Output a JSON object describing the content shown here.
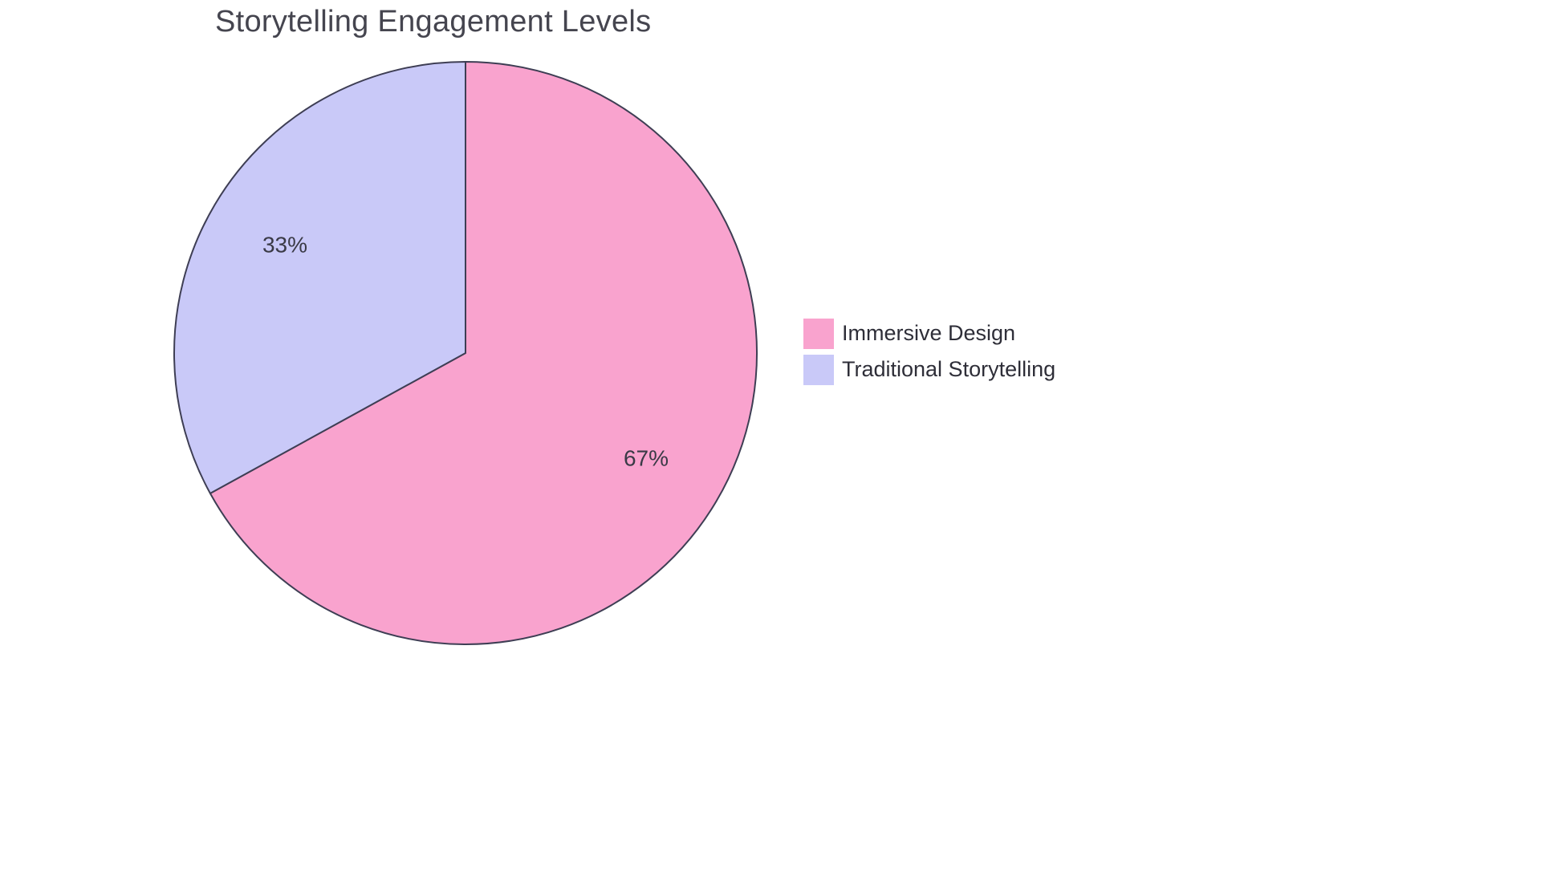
{
  "page": {
    "background_color": "#FFFFFF"
  },
  "chart_data": {
    "type": "pie",
    "title": "Storytelling Engagement Levels",
    "slices": [
      {
        "label": "Immersive Design",
        "value": 67,
        "percent_label": "67%",
        "color": "#F9A3CE"
      },
      {
        "label": "Traditional Storytelling",
        "value": 33,
        "percent_label": "33%",
        "color": "#C9C9F8"
      }
    ],
    "start_angle_deg": 0,
    "direction": "clockwise",
    "stroke_color": "#3E3E54",
    "stroke_width": 2,
    "label_color": "#3A3A46",
    "title_color": "#45454F",
    "legend": {
      "position": "right",
      "entries": [
        "Immersive Design",
        "Traditional Storytelling"
      ]
    }
  }
}
